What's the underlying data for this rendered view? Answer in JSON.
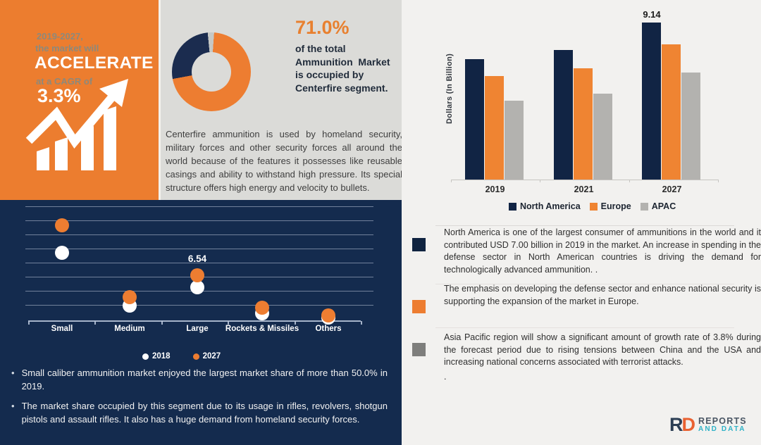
{
  "header_card": {
    "period": "2019-2027,",
    "subtitle": "the market will",
    "headline": "ACCELERATE",
    "cagr_label": "at a CAGR of",
    "cagr_value": "3.3%"
  },
  "centerfire": {
    "stat": "71.0%",
    "caption_lines": [
      "of the total",
      "Ammunition  Market",
      "is occupied by",
      "Centerfire segment."
    ],
    "body": "Centerfire ammunition is used by homeland security, military forces and other security forces all around the world because of the features it possesses like reusable casings and ability to withstand high pressure. Its special structure offers high energy and velocity to bullets."
  },
  "chart_data": [
    {
      "id": "centerfire-donut",
      "type": "pie",
      "donut": true,
      "start_angle_deg": 4,
      "slices": [
        {
          "label": "Centerfire",
          "value": 71.0,
          "color": "#ED7D31"
        },
        {
          "label": "",
          "value": 26.4,
          "color": "#1B2C4F"
        },
        {
          "label": "",
          "value": 2.6,
          "color": "#C6C8C5"
        }
      ]
    },
    {
      "id": "regional-bars",
      "type": "bar",
      "title": "",
      "xlabel": "",
      "ylabel": "Dollars (In Billion)",
      "categories": [
        "2019",
        "2021",
        "2027"
      ],
      "series": [
        {
          "name": "North America",
          "color": "#112444",
          "values": [
            7.0,
            7.54,
            9.14
          ]
        },
        {
          "name": "Europe",
          "color": "#EF8432",
          "values": [
            6.03,
            6.48,
            7.87
          ]
        },
        {
          "name": "APAC",
          "color": "#B3B2AF",
          "values": [
            4.6,
            5.0,
            6.23
          ]
        }
      ],
      "data_labels": [
        {
          "series": "North America",
          "category": "2027",
          "text": "9.14"
        }
      ],
      "ylim": [
        0,
        9.6
      ],
      "grid": false,
      "legend_position": "bottom"
    },
    {
      "id": "caliber-dotplot",
      "type": "scatter",
      "title": "",
      "categories": [
        "Small",
        "Medium",
        "Large",
        "Rockets & Missiles",
        "Others"
      ],
      "series": [
        {
          "name": "2018",
          "color": "#FFFFFF",
          "values": [
            9.8,
            2.1,
            4.8,
            1.0,
            0.4
          ]
        },
        {
          "name": "2027",
          "color": "#ED7D31",
          "values": [
            13.8,
            3.4,
            6.54,
            1.8,
            0.7
          ]
        }
      ],
      "data_labels": [
        {
          "series": "2027",
          "category": "Large",
          "text": "6.54"
        }
      ],
      "ylim": [
        0,
        16.2
      ],
      "gridlines": 8,
      "legend_position": "bottom"
    }
  ],
  "regional_notes": [
    {
      "color": "#0F2340",
      "text": "North America is one of the largest consumer of ammunitions in the world and it contributed USD 7.00 billion in 2019 in the market. An increase in spending in the defense sector in North American countries is driving the demand for technologically advanced ammunition. ."
    },
    {
      "color": "#ED7D31",
      "text": "The emphasis on developing the defense sector and enhance national security is supporting the expansion of the market in Europe."
    },
    {
      "color": "#7E7E7C",
      "text": "Asia Pacific region will show a significant amount of growth rate of 3.8% during the forecast period due to rising tensions between China and the USA and increasing national concerns associated with terrorist attacks.",
      "extra": "."
    }
  ],
  "segment_insights": {
    "bullet_char": "•",
    "items": [
      "Small caliber ammunition market enjoyed the largest market share of more than 50.0% in 2019.",
      "The market share occupied by this segment due to its usage in rifles, revolvers, shotgun pistols and assault rifles. It also has a huge demand from homeland security forces."
    ]
  },
  "logo": {
    "mark_r": "R",
    "mark_d": "D",
    "line1": "REPORTS",
    "line2": "AND DATA"
  },
  "colors": {
    "orange": "#EC7D2F",
    "navy_panel": "#142B4E",
    "navy_bar": "#112444",
    "gray_panel": "#DBDBD8",
    "apac_gray": "#B3B2AF",
    "note_gray": "#7E7E7C",
    "right_bg": "#F2F1EF",
    "logo_teal": "#2FB2C7"
  }
}
